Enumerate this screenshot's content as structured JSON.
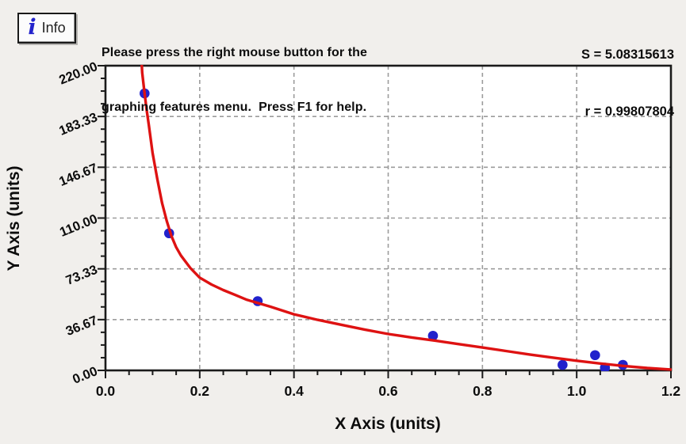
{
  "toolbar": {
    "info_button": {
      "label": "Info",
      "icon": "info-italic-i-icon",
      "icon_glyph": "i",
      "icon_color": "#2323cc"
    },
    "instructions_line1": "Please press the right mouse button for the",
    "instructions_line2": "graphing features menu.  Press F1 for help.",
    "stats_line1": "S = 5.08315613",
    "stats_line2": "r = 0.99807804"
  },
  "chart_data": {
    "type": "scatter",
    "title": "",
    "xlabel": "X Axis (units)",
    "ylabel": "Y Axis (units)",
    "xlim": [
      0.0,
      1.2
    ],
    "ylim": [
      0.0,
      220.0
    ],
    "x_ticks": {
      "major_values": [
        0.0,
        0.2,
        0.4,
        0.6,
        0.8,
        1.0,
        1.2
      ],
      "labels": [
        "0.0",
        "0.2",
        "0.4",
        "0.6",
        "0.8",
        "1.0",
        "1.2"
      ],
      "minor_step": 0.05,
      "minor_ticks_per_interval": 3
    },
    "y_ticks": {
      "major_values": [
        0.0,
        36.67,
        73.33,
        110.0,
        146.67,
        183.33,
        220.0
      ],
      "labels": [
        "0.00",
        "36.67",
        "73.33",
        "110.00",
        "146.67",
        "183.33",
        "220.00"
      ],
      "minor_step": 9.1675,
      "minor_ticks_per_interval": 3,
      "label_rotation_deg": -22
    },
    "grid": {
      "shown": true,
      "style": "dashed",
      "color": "#9c9c9c"
    },
    "legend": {
      "shown": false
    },
    "series": [
      {
        "name": "data-points",
        "type": "scatter",
        "color": "#2222cc",
        "marker": "circle",
        "points": [
          [
            0.083,
            200
          ],
          [
            0.135,
            99
          ],
          [
            0.323,
            50
          ],
          [
            0.695,
            25
          ],
          [
            0.97,
            4
          ],
          [
            1.039,
            11
          ],
          [
            1.06,
            2
          ],
          [
            1.098,
            4
          ]
        ]
      },
      {
        "name": "fitted-curve",
        "type": "line",
        "color": "#de1212",
        "points": [
          [
            0.074,
            238
          ],
          [
            0.078,
            215
          ],
          [
            0.082,
            203
          ],
          [
            0.087,
            189
          ],
          [
            0.092,
            177
          ],
          [
            0.1,
            157
          ],
          [
            0.11,
            138
          ],
          [
            0.12,
            121
          ],
          [
            0.13,
            108
          ],
          [
            0.14,
            97
          ],
          [
            0.15,
            89
          ],
          [
            0.16,
            83
          ],
          [
            0.18,
            74
          ],
          [
            0.2,
            67
          ],
          [
            0.225,
            62
          ],
          [
            0.25,
            58
          ],
          [
            0.275,
            54.5
          ],
          [
            0.3,
            51
          ],
          [
            0.325,
            48.5
          ],
          [
            0.35,
            46
          ],
          [
            0.4,
            40.5
          ],
          [
            0.45,
            36.5
          ],
          [
            0.5,
            33
          ],
          [
            0.55,
            29.5
          ],
          [
            0.6,
            26.3
          ],
          [
            0.65,
            23.8
          ],
          [
            0.7,
            21.5
          ],
          [
            0.75,
            19
          ],
          [
            0.8,
            16.5
          ],
          [
            0.85,
            14
          ],
          [
            0.9,
            11.5
          ],
          [
            0.95,
            9.2
          ],
          [
            1.0,
            7
          ],
          [
            1.05,
            5
          ],
          [
            1.1,
            3.2
          ],
          [
            1.15,
            1.7
          ],
          [
            1.2,
            0.6
          ]
        ]
      }
    ],
    "fit_stats": {
      "S": "5.08315613",
      "r": "0.99807804"
    }
  }
}
